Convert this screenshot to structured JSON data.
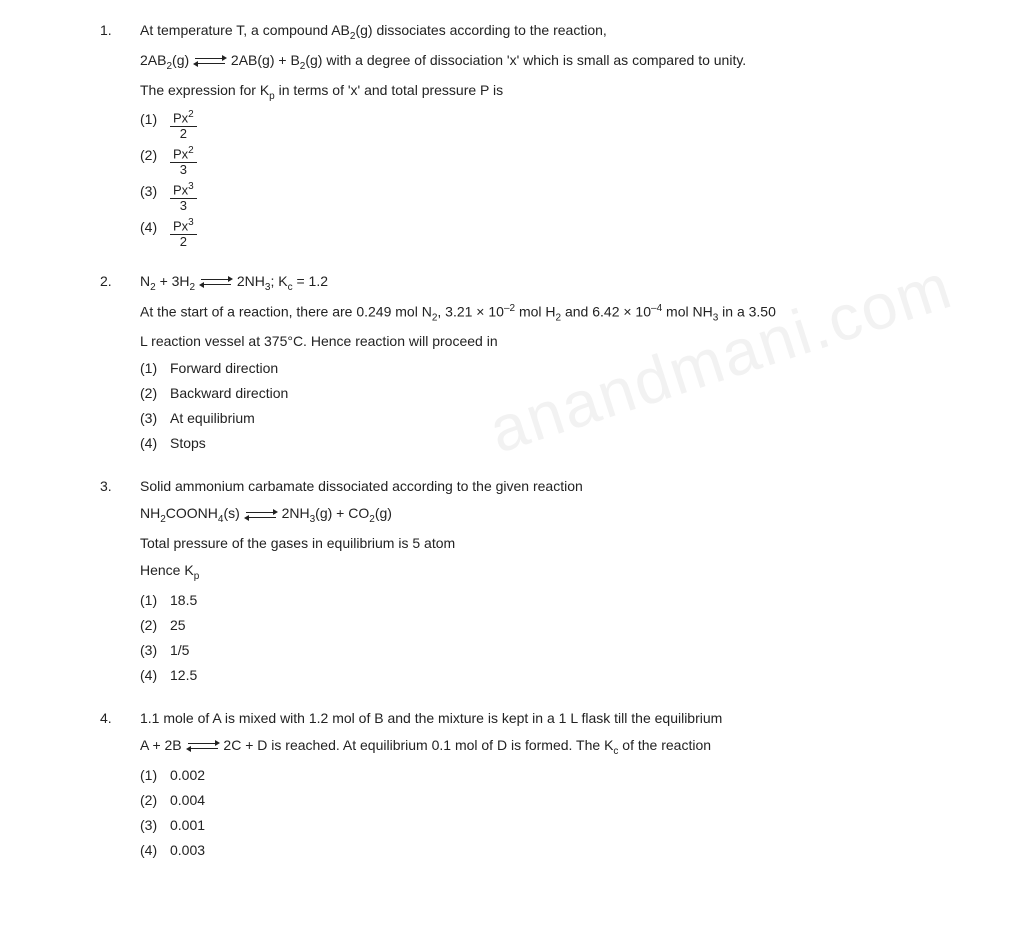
{
  "page": {
    "background_color": "#ffffff",
    "text_color": "#222222",
    "font_family": "Arial",
    "base_font_size_pt": 11,
    "watermark_text": "anandmani.com",
    "watermark_color": "#f2f2f2",
    "watermark_rotation_deg": -18
  },
  "questions": [
    {
      "number": "1.",
      "stem_lines": [
        "At temperature T, a compound AB₂(g) dissociates according to the reaction,",
        "2AB₂(g) ⇌ 2AB(g) + B₂(g) with a degree of dissociation 'x' which is small as compared to unity.",
        "The expression for Kₚ in terms of 'x' and total pressure P is"
      ],
      "options": [
        {
          "label": "(1)",
          "text": "Px²/2",
          "is_fraction": true,
          "num": "Px²",
          "den": "2"
        },
        {
          "label": "(2)",
          "text": "Px²/3",
          "is_fraction": true,
          "num": "Px²",
          "den": "3"
        },
        {
          "label": "(3)",
          "text": "Px³/3",
          "is_fraction": true,
          "num": "Px³",
          "den": "3"
        },
        {
          "label": "(4)",
          "text": "Px³/2",
          "is_fraction": true,
          "num": "Px³",
          "den": "2"
        }
      ]
    },
    {
      "number": "2.",
      "stem_lines": [
        "N₂ + 3H₂ ⇌ 2NH₃; K_c = 1.2",
        "At the start of a reaction, there are 0.249 mol N₂, 3.21 × 10⁻² mol H₂ and 6.42 × 10⁻⁴ mol NH₃ in a 3.50",
        "L reaction vessel at 375°C. Hence reaction will proceed in"
      ],
      "options": [
        {
          "label": "(1)",
          "text": "Forward direction"
        },
        {
          "label": "(2)",
          "text": "Backward direction"
        },
        {
          "label": "(3)",
          "text": "At equilibrium"
        },
        {
          "label": "(4)",
          "text": "Stops"
        }
      ]
    },
    {
      "number": "3.",
      "stem_lines": [
        "Solid ammonium carbamate dissociated according to the given reaction",
        "NH₂COONH₄(s) ⇌ 2NH₃(g) + CO₂(g)",
        "Total pressure of the gases in equilibrium is 5 atom",
        "Hence Kₚ"
      ],
      "options": [
        {
          "label": "(1)",
          "text": "18.5"
        },
        {
          "label": "(2)",
          "text": "25"
        },
        {
          "label": "(3)",
          "text": "1/5"
        },
        {
          "label": "(4)",
          "text": "12.5"
        }
      ]
    },
    {
      "number": "4.",
      "stem_lines": [
        "1.1 mole of A is mixed with 1.2 mol of B and the mixture is kept in a 1 L flask till the equilibrium",
        "A + 2B ⇌ 2C + D is reached. At equilibrium 0.1 mol of D is formed. The K_c of the reaction"
      ],
      "options": [
        {
          "label": "(1)",
          "text": "0.002"
        },
        {
          "label": "(2)",
          "text": "0.004"
        },
        {
          "label": "(3)",
          "text": "0.001"
        },
        {
          "label": "(4)",
          "text": "0.003"
        }
      ]
    }
  ]
}
